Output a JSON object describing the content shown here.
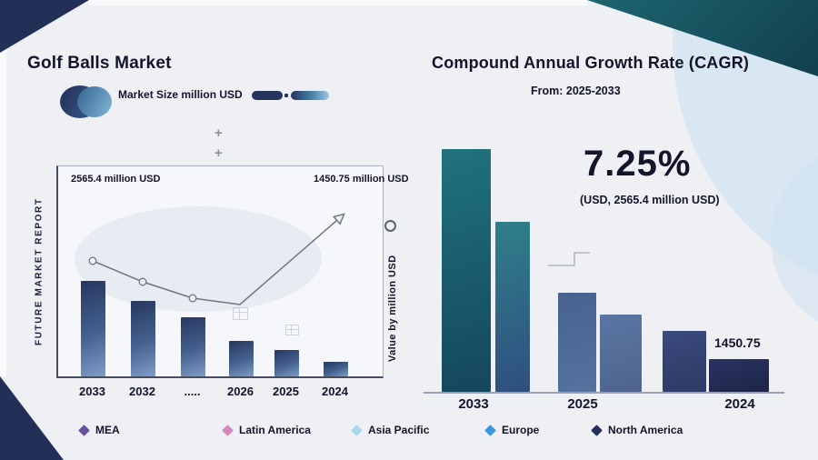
{
  "colors": {
    "background": "#eef0f3",
    "navy_corner": "#223058",
    "teal_corner": "#1c6670",
    "swoosh_blue": "#d6e5f2",
    "bar_gradient_left": [
      "#26375f",
      "#7f9bc7"
    ],
    "text_dark": "#14142b",
    "trend_line": "#70757f"
  },
  "header": {
    "left_title": "Golf Balls Market",
    "legend_label": "Market Size million USD"
  },
  "left_chart": {
    "value_label_left": "2565.4 million USD",
    "value_label_right": "1450.75 million USD",
    "y_axis_label": "FUTURE MARKET REPORT",
    "x_labels": [
      "2033",
      "2032",
      ".....",
      "2026",
      "2025",
      "2024"
    ]
  },
  "right_chart": {
    "title": "Compound Annual Growth Rate (CAGR)",
    "subtitle": "From: 2025-2033",
    "cagr": "7.25%",
    "cagr_note": "(USD, 2565.4 million USD)",
    "y_axis_label": "Value by million USD",
    "bar_annotation": "1450.75",
    "x_labels": [
      "2033",
      "2025",
      "2024"
    ],
    "bar_colors": [
      [
        "#20727e",
        "#14465c"
      ],
      [
        "#2f7f8b",
        "#2f4f7e"
      ],
      [
        "#47628e",
        "#55719d"
      ],
      [
        "#5a76a3",
        "#4f648f"
      ],
      [
        "#3a4a7c",
        "#2e3a66"
      ],
      [
        "#2a3462",
        "#1c2547"
      ]
    ]
  },
  "legend": {
    "items": [
      {
        "label": "MEA",
        "color": "#6b4fa1"
      },
      {
        "label": "Latin America",
        "color": "#d687bd"
      },
      {
        "label": "Asia Pacific",
        "color": "#a6d9ec"
      },
      {
        "label": "Europe",
        "color": "#3f96d9"
      },
      {
        "label": "North America",
        "color": "#232f5d"
      }
    ]
  },
  "chart_data": [
    {
      "type": "bar",
      "title": "Golf Balls Market",
      "series_label": "Market Size million USD",
      "categories": [
        "2033",
        "2032",
        ".....",
        "2026",
        "2025",
        "2024"
      ],
      "values": [
        2565.4,
        2390,
        2230,
        1670,
        1555,
        1450.75
      ],
      "values_note": "2033 = 2565.4 and 2024 = 1450.75 labeled on chart; intermediate years estimated from bar heights",
      "bar_rel_heights": [
        1,
        0.79,
        0.62,
        0.37,
        0.28,
        0.15
      ],
      "annotations": [
        "2565.4 million USD",
        "1450.75 million USD"
      ],
      "overlay": "declining dotted marker line over first bars with upward trend arrow to top right",
      "ylabel": "FUTURE MARKET REPORT",
      "grid": false
    },
    {
      "type": "bar",
      "title": "Compound Annual Growth Rate (CAGR)",
      "subtitle": "From: 2025-2033",
      "cagr_percent": 7.25,
      "cagr_basis": "(USD, 2565.4 million USD)",
      "categories": [
        "2033",
        "2025",
        "2024"
      ],
      "series": [
        {
          "name": "bar-1",
          "values": [
            2565.4,
            1050,
            640
          ]
        },
        {
          "name": "bar-2",
          "values": [
            1800,
            830,
            1450.75
          ]
        }
      ],
      "series_note": "only 2565.4, 1450.75 and 7.25% printed on chart; other bar values estimated",
      "bar_rel_heights": [
        [
          1,
          0.7
        ],
        [
          0.41,
          0.32
        ],
        [
          0.25,
          0.135
        ]
      ],
      "annotation": {
        "text": "1450.75",
        "at": "2024"
      },
      "ylabel": "Value by million USD",
      "regions_legend": [
        "MEA",
        "Latin America",
        "Asia Pacific",
        "Europe",
        "North America"
      ],
      "legend_position": "bottom",
      "grid": false
    }
  ]
}
